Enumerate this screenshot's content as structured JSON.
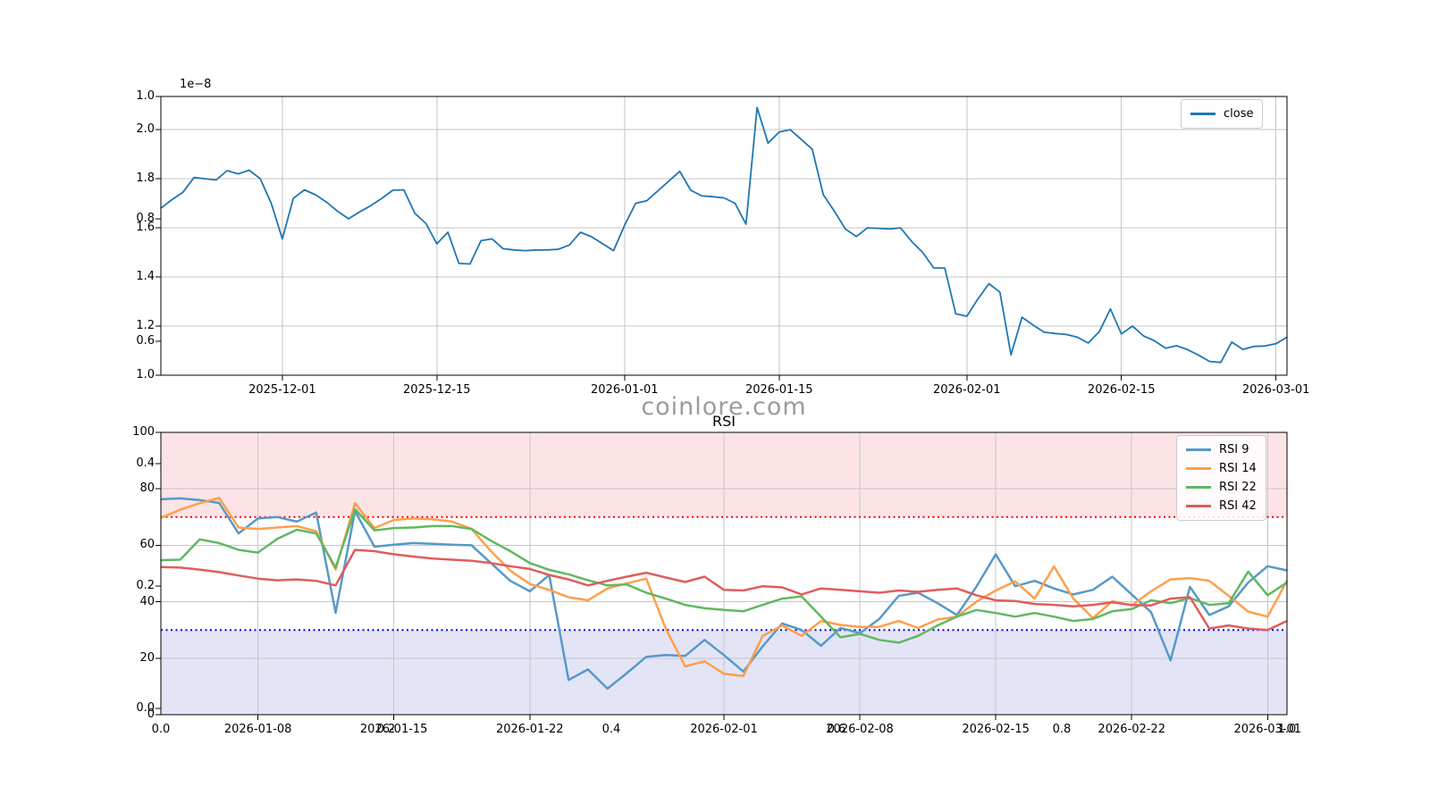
{
  "figure": {
    "watermark": "coinlore.com"
  },
  "stray_axis": {
    "yticks": [
      "1.0",
      "0.8",
      "0.6",
      "0.4",
      "0.2",
      "0.0"
    ],
    "xticks": [
      "0.0",
      "0.2",
      "0.4",
      "0.6",
      "0.8",
      "1.0"
    ]
  },
  "chart_data": [
    {
      "type": "line",
      "title": "",
      "legend": [
        "close"
      ],
      "legend_position": "upper right",
      "y_offset_label": "1e−8",
      "ylim": [
        1.0,
        2.135
      ],
      "yticks": [
        1.0,
        1.2,
        1.4,
        1.6,
        1.8,
        2.0
      ],
      "grid": true,
      "xticks": [
        "2025-12-01",
        "2025-12-15",
        "2026-01-01",
        "2026-01-15",
        "2026-02-01",
        "2026-02-15",
        "2026-03-01"
      ],
      "x": [
        "2025-11-20",
        "2025-11-21",
        "2025-11-22",
        "2025-11-23",
        "2025-11-24",
        "2025-11-25",
        "2025-11-26",
        "2025-11-27",
        "2025-11-28",
        "2025-11-29",
        "2025-11-30",
        "2025-12-01",
        "2025-12-02",
        "2025-12-03",
        "2025-12-04",
        "2025-12-05",
        "2025-12-06",
        "2025-12-07",
        "2025-12-08",
        "2025-12-09",
        "2025-12-10",
        "2025-12-11",
        "2025-12-12",
        "2025-12-13",
        "2025-12-14",
        "2025-12-15",
        "2025-12-16",
        "2025-12-17",
        "2025-12-18",
        "2025-12-19",
        "2025-12-20",
        "2025-12-21",
        "2025-12-22",
        "2025-12-23",
        "2025-12-24",
        "2025-12-25",
        "2025-12-26",
        "2025-12-27",
        "2025-12-28",
        "2025-12-29",
        "2025-12-30",
        "2025-12-31",
        "2026-01-01",
        "2026-01-02",
        "2026-01-03",
        "2026-01-04",
        "2026-01-05",
        "2026-01-06",
        "2026-01-07",
        "2026-01-08",
        "2026-01-09",
        "2026-01-10",
        "2026-01-11",
        "2026-01-12",
        "2026-01-13",
        "2026-01-14",
        "2026-01-15",
        "2026-01-16",
        "2026-01-17",
        "2026-01-18",
        "2026-01-19",
        "2026-01-20",
        "2026-01-21",
        "2026-01-22",
        "2026-01-23",
        "2026-01-24",
        "2026-01-25",
        "2026-01-26",
        "2026-01-27",
        "2026-01-28",
        "2026-01-29",
        "2026-01-30",
        "2026-01-31",
        "2026-02-01",
        "2026-02-02",
        "2026-02-03",
        "2026-02-04",
        "2026-02-05",
        "2026-02-06",
        "2026-02-07",
        "2026-02-08",
        "2026-02-09",
        "2026-02-10",
        "2026-02-11",
        "2026-02-12",
        "2026-02-13",
        "2026-02-14",
        "2026-02-15",
        "2026-02-16",
        "2026-02-17",
        "2026-02-18",
        "2026-02-19",
        "2026-02-20",
        "2026-02-21",
        "2026-02-22",
        "2026-02-23",
        "2026-02-24",
        "2026-02-25",
        "2026-02-26",
        "2026-02-27",
        "2026-02-28",
        "2026-03-01",
        "2026-03-02"
      ],
      "series": [
        {
          "name": "close",
          "color": "#1f77b4",
          "values": [
            1.68,
            1.715,
            1.745,
            1.805,
            1.8,
            1.795,
            1.833,
            1.82,
            1.835,
            1.8,
            1.7,
            1.555,
            1.72,
            1.755,
            1.735,
            1.705,
            1.668,
            1.637,
            1.665,
            1.69,
            1.72,
            1.753,
            1.755,
            1.66,
            1.618,
            1.535,
            1.582,
            1.455,
            1.453,
            1.548,
            1.555,
            1.515,
            1.51,
            1.507,
            1.51,
            1.51,
            1.513,
            1.53,
            1.582,
            1.564,
            1.536,
            1.507,
            1.61,
            1.7,
            1.71,
            1.75,
            1.79,
            1.83,
            1.753,
            1.73,
            1.727,
            1.722,
            1.7,
            1.615,
            2.09,
            1.945,
            1.99,
            2.0,
            1.96,
            1.92,
            1.735,
            1.668,
            1.595,
            1.565,
            1.6,
            1.598,
            1.595,
            1.6,
            1.545,
            1.5,
            1.437,
            1.436,
            1.25,
            1.24,
            1.31,
            1.373,
            1.338,
            1.083,
            1.236,
            1.204,
            1.175,
            1.17,
            1.166,
            1.155,
            1.131,
            1.177,
            1.27,
            1.168,
            1.2,
            1.16,
            1.14,
            1.11,
            1.12,
            1.104,
            1.081,
            1.056,
            1.052,
            1.135,
            1.105,
            1.117,
            1.119,
            1.128,
            1.155
          ]
        }
      ]
    },
    {
      "type": "line",
      "title": "RSI",
      "legend": [
        "RSI 9",
        "RSI 14",
        "RSI 22",
        "RSI 42"
      ],
      "legend_position": "upper right",
      "ylim": [
        0,
        100
      ],
      "yticks": [
        0,
        20,
        40,
        60,
        80,
        100
      ],
      "grid": true,
      "overbought_level": 70,
      "oversold_level": 30,
      "bands": [
        {
          "from": 70,
          "to": 100,
          "color": "#fce4e6"
        },
        {
          "from": 0,
          "to": 30,
          "color": "#e4e4f7"
        }
      ],
      "hlines": [
        {
          "y": 70,
          "color": "#ff0000",
          "style": "dotted"
        },
        {
          "y": 30,
          "color": "#0000ff",
          "style": "dotted"
        }
      ],
      "xticks": [
        "2026-01-08",
        "2026-01-15",
        "2026-01-22",
        "2026-02-01",
        "2026-02-08",
        "2026-02-15",
        "2026-02-22",
        "2026-03-01"
      ],
      "x": [
        "2026-01-03",
        "2026-01-04",
        "2026-01-05",
        "2026-01-06",
        "2026-01-07",
        "2026-01-08",
        "2026-01-09",
        "2026-01-10",
        "2026-01-11",
        "2026-01-12",
        "2026-01-13",
        "2026-01-14",
        "2026-01-15",
        "2026-01-16",
        "2026-01-17",
        "2026-01-18",
        "2026-01-19",
        "2026-01-20",
        "2026-01-21",
        "2026-01-22",
        "2026-01-23",
        "2026-01-24",
        "2026-01-25",
        "2026-01-26",
        "2026-01-27",
        "2026-01-28",
        "2026-01-29",
        "2026-01-30",
        "2026-01-31",
        "2026-02-01",
        "2026-02-02",
        "2026-02-03",
        "2026-02-04",
        "2026-02-05",
        "2026-02-06",
        "2026-02-07",
        "2026-02-08",
        "2026-02-09",
        "2026-02-10",
        "2026-02-11",
        "2026-02-12",
        "2026-02-13",
        "2026-02-14",
        "2026-02-15",
        "2026-02-16",
        "2026-02-17",
        "2026-02-18",
        "2026-02-19",
        "2026-02-20",
        "2026-02-21",
        "2026-02-22",
        "2026-02-23",
        "2026-02-24",
        "2026-02-25",
        "2026-02-26",
        "2026-02-27",
        "2026-02-28",
        "2026-03-01",
        "2026-03-02"
      ],
      "series": [
        {
          "name": "RSI 9",
          "color": "#5799c7",
          "values": [
            76.3,
            76.6,
            76.0,
            75.0,
            64.2,
            69.5,
            70.0,
            68.4,
            71.6,
            36.1,
            72.1,
            59.5,
            60.2,
            60.8,
            60.5,
            60.2,
            60.0,
            53.7,
            47.4,
            43.7,
            49.5,
            12.3,
            16.0,
            9.2,
            14.7,
            20.5,
            21.1,
            20.8,
            26.5,
            21.1,
            15.3,
            24.2,
            32.3,
            30.0,
            24.4,
            30.7,
            28.9,
            33.9,
            42.1,
            43.2,
            39.5,
            35.3,
            45.3,
            56.8,
            45.5,
            47.4,
            44.7,
            42.6,
            44.2,
            48.9,
            42.6,
            36.3,
            19.2,
            45.3,
            35.3,
            38.4,
            46.8,
            52.6,
            51.1
          ]
        },
        {
          "name": "RSI 14",
          "color": "#ff9f4a",
          "values": [
            69.7,
            72.6,
            74.9,
            76.8,
            66.3,
            65.8,
            66.3,
            66.8,
            65.0,
            51.4,
            74.9,
            66.1,
            69.0,
            69.5,
            69.2,
            68.4,
            65.8,
            57.9,
            51.0,
            46.3,
            44.2,
            41.6,
            40.5,
            44.7,
            46.5,
            48.2,
            30.5,
            17.1,
            18.9,
            14.5,
            13.7,
            27.9,
            31.6,
            27.9,
            33.2,
            31.8,
            31.1,
            31.1,
            33.2,
            30.7,
            33.7,
            34.7,
            40.0,
            44.0,
            47.2,
            41.1,
            52.5,
            41.1,
            34.2,
            40.2,
            38.7,
            43.7,
            47.9,
            48.4,
            47.4,
            42.1,
            36.5,
            34.7,
            47.5
          ]
        },
        {
          "name": "RSI 22",
          "color": "#61b861",
          "values": [
            54.7,
            54.9,
            62.1,
            60.8,
            58.4,
            57.4,
            62.3,
            65.5,
            64.2,
            52.1,
            72.8,
            65.3,
            66.1,
            66.3,
            66.8,
            66.8,
            65.8,
            61.6,
            57.9,
            53.7,
            51.3,
            49.7,
            47.6,
            45.8,
            46.1,
            43.2,
            41.1,
            38.9,
            37.7,
            37.1,
            36.6,
            38.9,
            41.1,
            41.9,
            34.7,
            27.4,
            28.6,
            26.5,
            25.5,
            27.9,
            31.6,
            34.7,
            37.1,
            36.0,
            34.7,
            36.0,
            34.7,
            33.2,
            33.9,
            36.6,
            37.4,
            40.5,
            39.5,
            41.3,
            38.9,
            39.5,
            50.7,
            42.3,
            46.8
          ]
        },
        {
          "name": "RSI 42",
          "color": "#e05d5e",
          "values": [
            52.3,
            52.1,
            51.4,
            50.5,
            49.3,
            48.2,
            47.6,
            47.9,
            47.4,
            45.8,
            58.4,
            57.9,
            56.8,
            56.0,
            55.3,
            54.9,
            54.5,
            53.7,
            52.6,
            51.6,
            49.5,
            47.9,
            45.8,
            47.4,
            48.9,
            50.3,
            48.6,
            47.0,
            48.9,
            44.2,
            44.0,
            45.5,
            45.1,
            42.6,
            44.7,
            44.2,
            43.7,
            43.2,
            44.0,
            43.5,
            44.2,
            44.7,
            42.3,
            40.5,
            40.3,
            39.2,
            38.9,
            38.4,
            38.9,
            39.8,
            38.9,
            38.7,
            41.1,
            41.6,
            30.5,
            31.6,
            30.5,
            30.0,
            33.2
          ]
        }
      ]
    }
  ]
}
